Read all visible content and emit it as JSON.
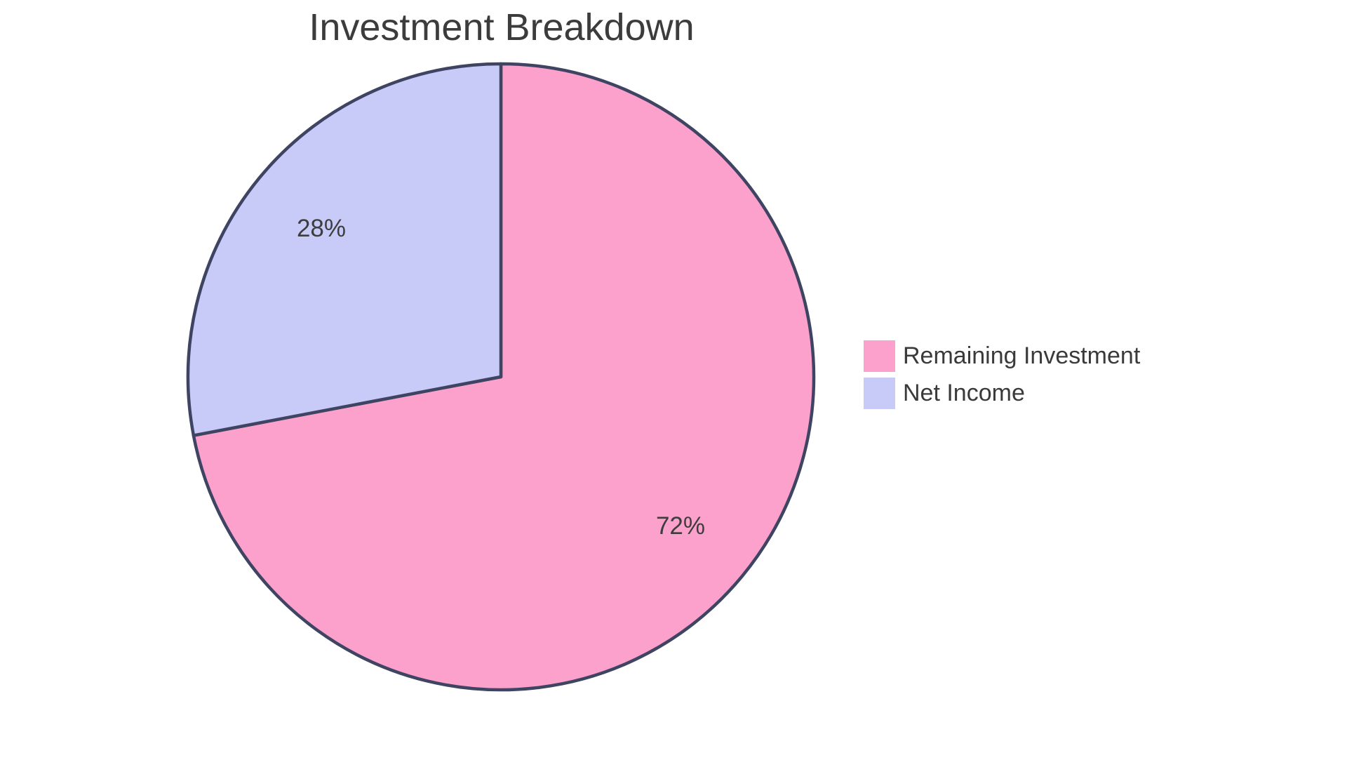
{
  "chart_data": {
    "type": "pie",
    "title": "Investment Breakdown",
    "categories": [
      "Remaining Investment",
      "Net Income"
    ],
    "values": [
      72,
      28
    ],
    "slice_labels": [
      "72%",
      "28%"
    ],
    "colors": [
      "#FBA1CC",
      "#C8CAF8"
    ],
    "slice_stroke_color": "#3E4462",
    "text_color": "#3A3A3A",
    "start_angle_deg": 0,
    "direction": "clockwise",
    "legend_position": "right",
    "labels_inside_slices": true
  }
}
